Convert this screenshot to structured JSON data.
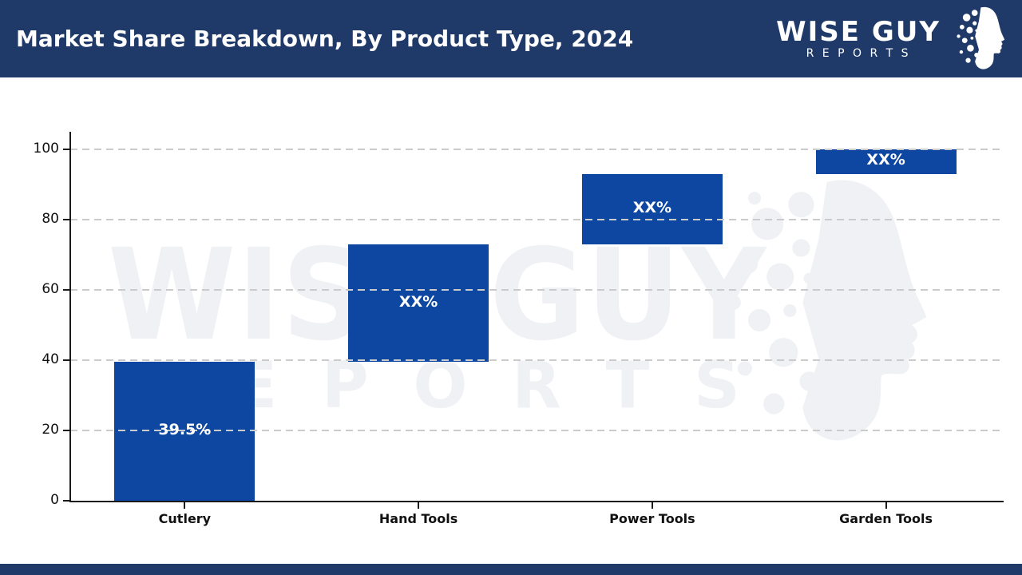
{
  "header": {
    "title": "Market Share Breakdown, By Product Type, 2024",
    "logo": {
      "name": "WISE GUY",
      "sub": "R E P O R T S"
    }
  },
  "watermark": {
    "line1": "WISE GUY",
    "line2": "R E P O R T S"
  },
  "chart_data": {
    "type": "bar",
    "subtype": "waterfall",
    "title": "Market Share Breakdown, By Product Type, 2024",
    "categories": [
      "Cutlery",
      "Hand Tools",
      "Power Tools",
      "Garden Tools"
    ],
    "segments": [
      {
        "category": "Cutlery",
        "start": 0,
        "end": 39.5,
        "label": "39.5%"
      },
      {
        "category": "Hand Tools",
        "start": 39.5,
        "end": 73,
        "label": "XX%"
      },
      {
        "category": "Power Tools",
        "start": 73,
        "end": 93,
        "label": "XX%"
      },
      {
        "category": "Garden Tools",
        "start": 93,
        "end": 100,
        "label": "XX%"
      }
    ],
    "ylabel": "",
    "xlabel": "",
    "ylim": [
      0,
      105
    ],
    "yticks": [
      0,
      20,
      40,
      60,
      80,
      100
    ],
    "grid": "horizontal dashed gridlines drawn over bars",
    "legend": "none",
    "colors": {
      "bar": "#0d47a1",
      "header_bg": "#1f3a68",
      "footer_bg": "#1f3a68",
      "grid_line": "#cbcbcb",
      "axis": "#1a1a1a",
      "watermark": "#eff1f4",
      "bar_label_text": "#ffffff"
    }
  }
}
